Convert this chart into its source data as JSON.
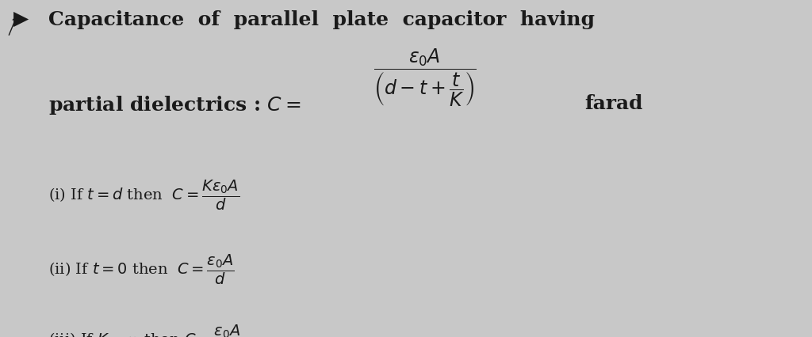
{
  "background_color": "#c8c8c8",
  "text_color": "#1a1a1a",
  "font_size_title": 18,
  "font_size_formula": 15,
  "font_size_cases": 14
}
